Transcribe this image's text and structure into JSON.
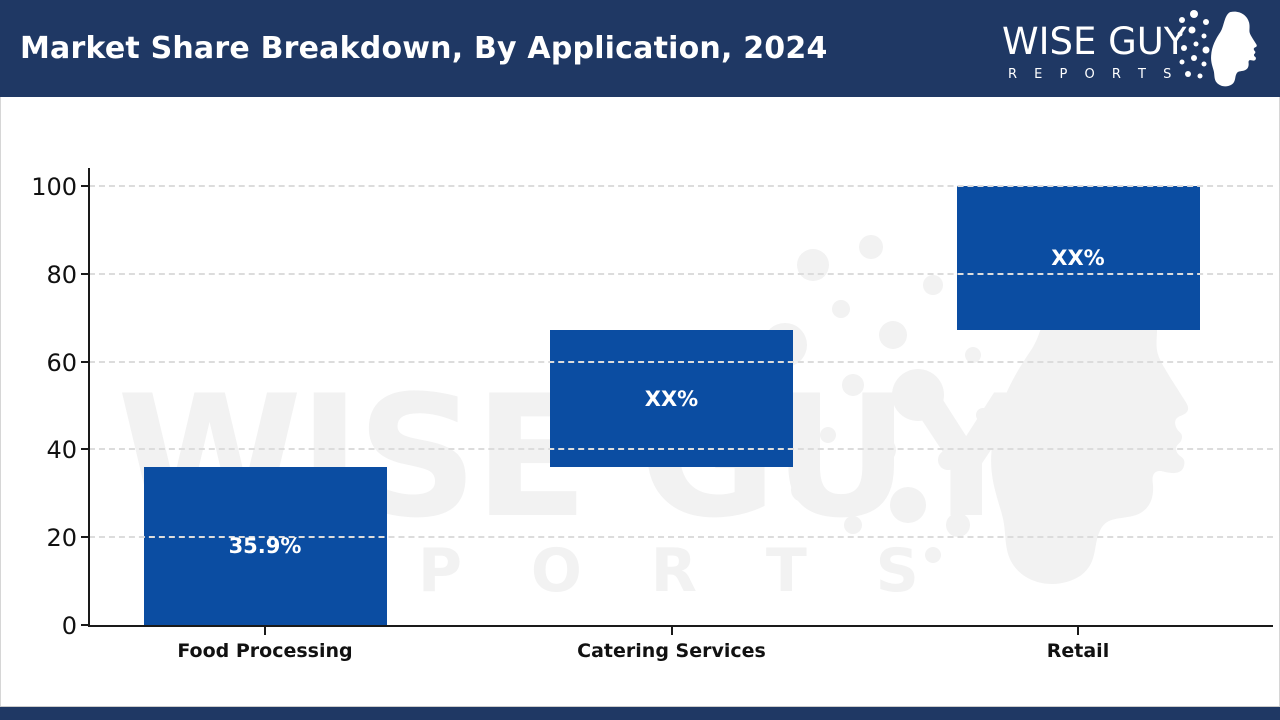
{
  "header": {
    "title": "Market Share Breakdown, By Application, 2024",
    "bg_color": "#1f3864",
    "logo": {
      "line1": "WISE GUY",
      "line2": "R E P O R T S"
    }
  },
  "watermark": {
    "line1": "WISE GUY",
    "line2": "R E P O R T S"
  },
  "chart_data": {
    "type": "bar",
    "subtype": "waterfall",
    "title": "Market Share Breakdown, By Application, 2024",
    "categories": [
      "Food Processing",
      "Catering Services",
      "Retail"
    ],
    "series": [
      {
        "name": "Market share (%)",
        "segments": [
          {
            "category": "Food Processing",
            "start": 0,
            "end": 35.9,
            "label": "35.9%"
          },
          {
            "category": "Catering Services",
            "start": 35.9,
            "end": 67.2,
            "label": "XX%"
          },
          {
            "category": "Retail",
            "start": 67.2,
            "end": 100,
            "label": "XX%"
          }
        ]
      }
    ],
    "xlabel": "",
    "ylabel": "",
    "yticks": [
      0,
      20,
      40,
      60,
      80,
      100
    ],
    "ylim": [
      0,
      105
    ],
    "bar_color": "#0b4da2",
    "bar_label_color": "#ffffff",
    "grid": {
      "horizontal": true,
      "style": "dashed",
      "color": "#dcdcdc",
      "drawn_over_bars": true
    },
    "legend": "none"
  }
}
